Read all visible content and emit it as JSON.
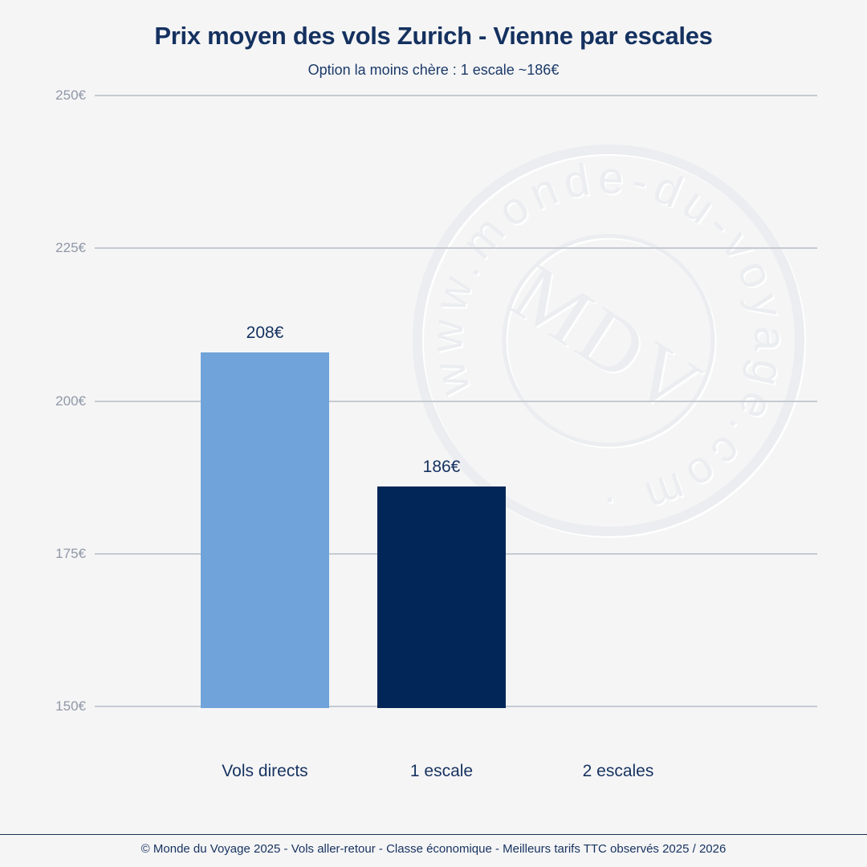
{
  "header": {
    "title": "Prix moyen des vols Zurich - Vienne par escales",
    "subtitle": "Option la moins chère : 1 escale ~186€"
  },
  "chart_data": {
    "type": "bar",
    "title": "Prix moyen des vols Zurich - Vienne par escales",
    "subtitle": "Option la moins chère : 1 escale ~186€",
    "categories": [
      "Vols directs",
      "1 escale",
      "2 escales"
    ],
    "values": [
      208,
      186,
      null
    ],
    "value_labels": [
      "208€",
      "186€",
      ""
    ],
    "bar_colors": [
      "#6fa3d9",
      "#022657",
      null
    ],
    "xlabel": "",
    "ylabel": "",
    "ylim": [
      150,
      250
    ],
    "yticks": [
      {
        "value": 250,
        "label": "250€"
      },
      {
        "value": 225,
        "label": "225€"
      },
      {
        "value": 200,
        "label": "200€"
      },
      {
        "value": 175,
        "label": "175€"
      },
      {
        "value": 150,
        "label": "150€"
      }
    ],
    "grid": true,
    "legend": false
  },
  "watermark": {
    "ring_text": "www.monde-du-voyage.com ·",
    "center_text": "MDV"
  },
  "footer": {
    "text": "© Monde du Voyage 2025 - Vols aller-retour - Classe économique - Meilleurs tarifs TTC observés 2025 / 2026"
  },
  "colors": {
    "background": "#f5f5f6",
    "title_text": "#14315f",
    "subtitle_text": "#1b3a69",
    "bar_light_blue": "#6fa3d9",
    "bar_dark_navy": "#022657",
    "value_label_text": "#14315f",
    "category_label_text": "#16335f",
    "axis_tick_text": "#9098a6",
    "gridline": "#c6cad2",
    "footer_line": "#1b3055",
    "footer_text": "#16325f",
    "watermark_fill": "#ebedf0"
  }
}
